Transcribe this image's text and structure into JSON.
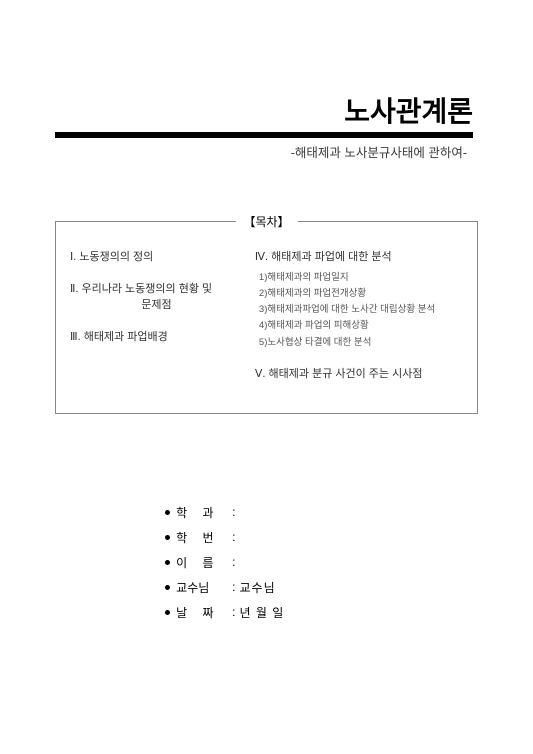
{
  "title": {
    "main": "노사관계론",
    "subtitle": "-해태제과 노사분규사태에 관하여-"
  },
  "toc": {
    "heading": "【목차】",
    "left_items": [
      {
        "text": "Ⅰ. 노동쟁의의 정의"
      },
      {
        "line1": "Ⅱ. 우리나라 노동쟁의의 현황 및",
        "line2": "문제점"
      },
      {
        "text": "Ⅲ. 해태제과 파업배경"
      }
    ],
    "right_items": [
      {
        "main": "Ⅳ. 해태제과 파업에 대한 분석",
        "subs": [
          "1)해태제과의 파업일지",
          "2)해태제과의 파업전개상황",
          "3)해태제과파업에 대한 노사간 대립상황 분석",
          "4)해태제과 파업의 피해상황",
          "5)노사협상 타결에 대한 분석"
        ]
      },
      {
        "main": "Ⅴ. 해태제과 분규 사건이 주는 시사점"
      }
    ]
  },
  "info": {
    "rows": [
      {
        "label": "학   과",
        "label_cls": "med",
        "value": ""
      },
      {
        "label": "학   번",
        "label_cls": "med",
        "value": ""
      },
      {
        "label": "이   름",
        "label_cls": "med",
        "value": ""
      },
      {
        "label": "교수님",
        "label_cls": "tight",
        "value": "교수님"
      },
      {
        "label": "날   짜",
        "label_cls": "med",
        "value": "년 월 일"
      }
    ]
  }
}
